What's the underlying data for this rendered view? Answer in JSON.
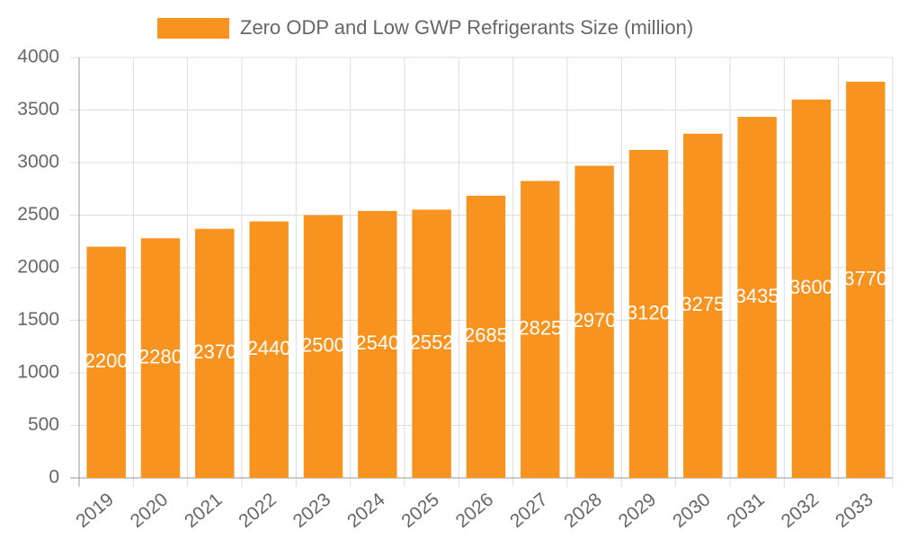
{
  "chart_data": {
    "type": "bar",
    "categories": [
      "2019",
      "2020",
      "2021",
      "2022",
      "2023",
      "2024",
      "2025",
      "2026",
      "2027",
      "2028",
      "2029",
      "2030",
      "2031",
      "2032",
      "2033"
    ],
    "series": [
      {
        "name": "Zero ODP and Low GWP Refrigerants Size (million)",
        "color": "#f7931e",
        "values": [
          2200,
          2280,
          2370,
          2440,
          2500,
          2540,
          2552,
          2685,
          2825,
          2970,
          3120,
          3275,
          3435,
          3600,
          3770
        ]
      }
    ],
    "ylim": [
      0,
      4000
    ],
    "yticks": [
      0,
      500,
      1000,
      1500,
      2000,
      2500,
      3000,
      3500,
      4000
    ],
    "grid": true,
    "legend": "top",
    "data_labels": true
  }
}
